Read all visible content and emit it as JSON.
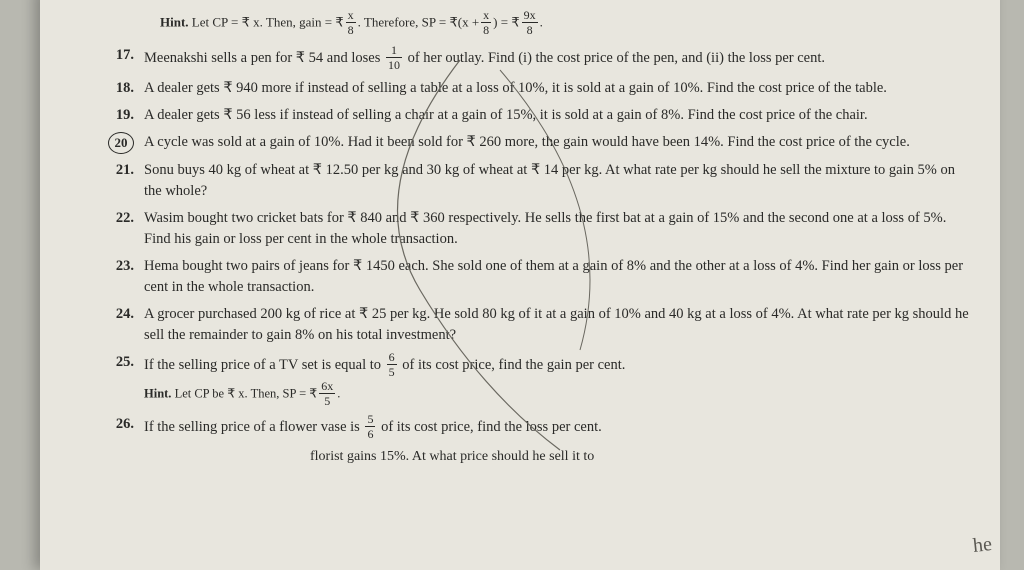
{
  "hint_top": {
    "label": "Hint.",
    "text_a": "Let CP = ",
    "rupee": "₹",
    "text_b": " x. Then, gain = ",
    "frac1": {
      "n": "x",
      "d": "8"
    },
    "text_c": ". Therefore, SP = ",
    "text_d": "x +",
    "frac2": {
      "n": "x",
      "d": "8"
    },
    "text_e": " = ",
    "frac3": {
      "n": "9x",
      "d": "8"
    },
    "text_f": "."
  },
  "q": [
    {
      "n": "17.",
      "t1": "Meenakshi sells a pen for ₹ 54 and loses ",
      "frac": {
        "n": "1",
        "d": "10"
      },
      "t2": " of her outlay. Find (i) the cost price of the pen, and (ii) the loss per cent."
    },
    {
      "n": "18.",
      "t1": "A dealer gets ₹ 940 more if instead of selling a table at a loss of 10%, it is sold at a gain of 10%. Find the cost price of the table."
    },
    {
      "n": "19.",
      "t1": "A dealer gets ₹ 56 less if instead of selling a chair at a gain of 15%, it is sold at a gain of 8%. Find the cost price of the chair."
    },
    {
      "n": "20.",
      "t1": "A cycle was sold at a gain of 10%. Had it been sold for ₹ 260 more, the gain would have been 14%. Find the cost price of the cycle.",
      "circled": true
    },
    {
      "n": "21.",
      "t1": "Sonu buys 40 kg of wheat at ₹ 12.50 per kg and 30 kg of wheat at ₹ 14 per kg. At what rate per kg should he sell the mixture to gain 5% on the whole?"
    },
    {
      "n": "22.",
      "t1": "Wasim bought two cricket bats for ₹ 840 and ₹ 360 respectively. He sells the first bat at a gain of 15% and the second one at a loss of 5%. Find his gain or loss per cent in the whole transaction."
    },
    {
      "n": "23.",
      "t1": "Hema bought two pairs of jeans for ₹ 1450 each. She sold one of them at a gain of 8% and the other at a loss of 4%. Find her gain or loss per cent in the whole transaction."
    },
    {
      "n": "24.",
      "t1": "A grocer purchased 200 kg of rice at ₹ 25 per kg. He sold 80 kg of it at a gain of 10% and 40 kg at a loss of 4%. At what rate per kg should he sell the remainder to gain 8% on his total investment?"
    },
    {
      "n": "25.",
      "t1": "If the selling price of a TV set is equal to ",
      "frac": {
        "n": "6",
        "d": "5"
      },
      "t2": " of its cost price, find the gain per cent.",
      "hint": {
        "a": "Let CP be ₹ x. Then, SP = ₹",
        "frac": {
          "n": "6x",
          "d": "5"
        },
        "b": "."
      }
    },
    {
      "n": "26.",
      "t1": "If the selling price of a flower vase is ",
      "frac": {
        "n": "5",
        "d": "6"
      },
      "t2": " of its cost price, find the loss per cent."
    }
  ],
  "trail": "florist gains 15%. At what price should he sell it to",
  "scribble": "he"
}
